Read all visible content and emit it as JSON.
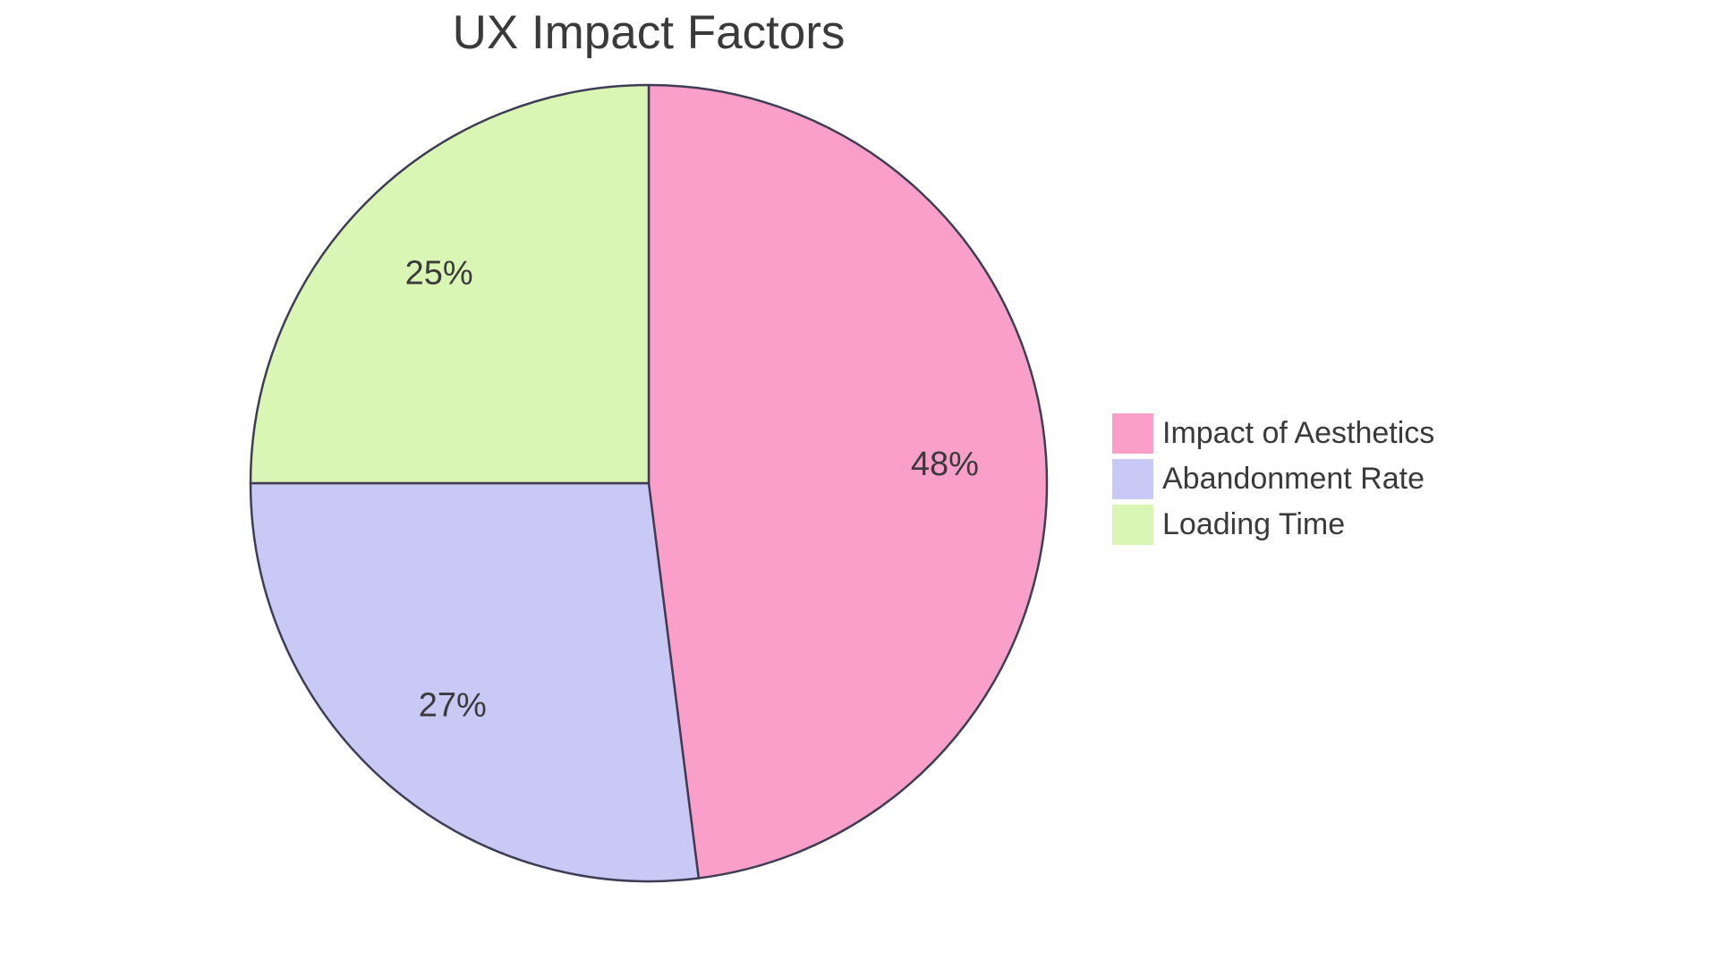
{
  "page": {
    "background": "#FFFFFF"
  },
  "chart_data": {
    "type": "pie",
    "title": "UX Impact Factors",
    "categories": [
      "Impact of Aesthetics",
      "Abandonment Rate",
      "Loading Time"
    ],
    "values": [
      48,
      27,
      25
    ],
    "slices": [
      {
        "label": "Impact of Aesthetics",
        "value": 48,
        "percent_label": "48%",
        "color": "#FA9FC9"
      },
      {
        "label": "Abandonment Rate",
        "value": 27,
        "percent_label": "27%",
        "color": "#C9C9F6"
      },
      {
        "label": "Loading Time",
        "value": 25,
        "percent_label": "25%",
        "color": "#DAF6B5"
      }
    ],
    "start_angle_deg": 0,
    "direction": "clockwise",
    "legend_position": "right",
    "style": {
      "stroke_color": "#3F3D56",
      "stroke_width": 2.5,
      "label_color": "#3B3B3B",
      "title_color": "#3A3A3A",
      "legend_text_color": "#3A3A3A",
      "label_radius_fraction": 0.745
    }
  }
}
